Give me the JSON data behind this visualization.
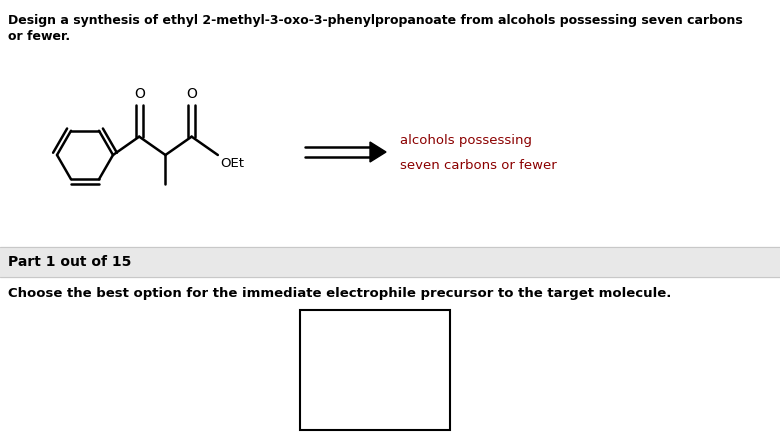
{
  "title_line1": "Design a synthesis of ethyl 2-methyl-3-oxo-3-phenylpropanoate from alcohols possessing seven carbons",
  "title_line2": "or fewer.",
  "part_label": "Part 1 out of 15",
  "question_text": "Choose the best option for the immediate electrophile precursor to the target molecule.",
  "arrow_text_line1": "alcohols possessing",
  "arrow_text_line2": "seven carbons or fewer",
  "arrow_text_color": "#8B0000",
  "background_color": "#ffffff",
  "part_bar_color": "#e8e8e8",
  "part_bar_border": "#c8c8c8",
  "molecule_color": "#000000"
}
